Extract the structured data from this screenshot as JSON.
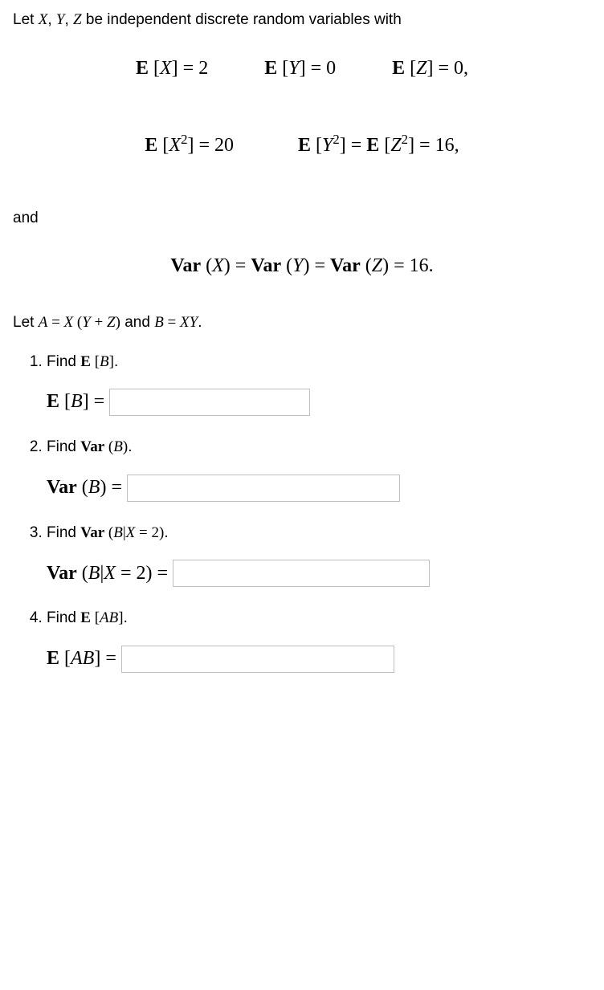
{
  "intro": "Let X, Y, Z be independent discrete random variables with",
  "eq_row1": {
    "a": "E [X] = 2",
    "b": "E [Y] = 0",
    "c": "E [Z] = 0,"
  },
  "eq_row2": {
    "a_pre": "E [X",
    "a_sup": "2",
    "a_post": "] = 20",
    "b_pre": "E [Y",
    "b_sup": "2",
    "b_mid": "] = E [Z",
    "b_sup2": "2",
    "b_post": "] = 16,"
  },
  "and_label": "and",
  "var_eq": "Var (X) = Var (Y) = Var (Z) = 16.",
  "let_ab_pre": "Let ",
  "let_ab_A": "A = X (Y + Z)",
  "let_ab_and": " and ",
  "let_ab_B": "B = XY",
  "let_ab_end": ".",
  "questions": [
    {
      "prompt_pre": "Find ",
      "prompt_bold": "E",
      "prompt_post": " [B].",
      "answer_label": "E [B] =",
      "input_class": "w-small"
    },
    {
      "prompt_pre": "Find ",
      "prompt_bold": "Var",
      "prompt_post": " (B).",
      "answer_label": "Var (B) =",
      "input_class": "w-med"
    },
    {
      "prompt_pre": "Find ",
      "prompt_bold": "Var",
      "prompt_post": " (B|X = 2).",
      "answer_label": "Var (B|X = 2) =",
      "input_class": "w-large"
    },
    {
      "prompt_pre": "Find ",
      "prompt_bold": "E",
      "prompt_post": " [AB].",
      "answer_label": "E [AB] =",
      "input_class": "w-med"
    }
  ]
}
